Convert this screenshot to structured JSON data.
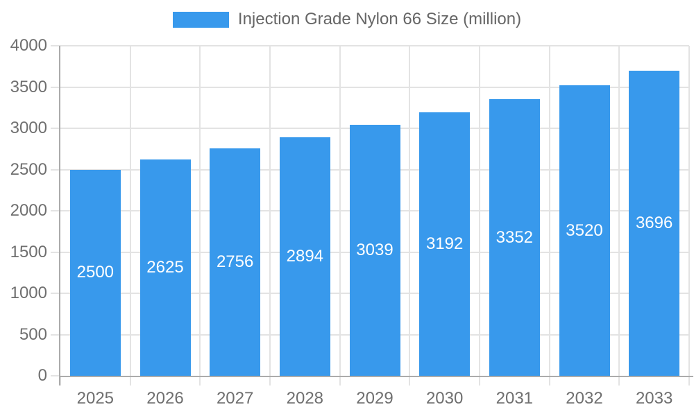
{
  "chart_data": {
    "type": "bar",
    "title": "Injection Grade Nylon 66 Size (million)",
    "legend_label": "Injection Grade Nylon 66 Size (million)",
    "legend_position": "top",
    "categories": [
      "2025",
      "2026",
      "2027",
      "2028",
      "2029",
      "2030",
      "2031",
      "2032",
      "2033"
    ],
    "values": [
      2500,
      2625,
      2756,
      2894,
      3039,
      3192,
      3352,
      3520,
      3696
    ],
    "xlabel": "",
    "ylabel": "",
    "ylim": [
      0,
      4000
    ],
    "yticks": [
      0,
      500,
      1000,
      1500,
      2000,
      2500,
      3000,
      3500,
      4000
    ],
    "grid": true,
    "value_labels": "inside-center",
    "colors": {
      "bar": "#3899EC",
      "grid": "#E3E3E3",
      "axis": "#ABABAB",
      "tick_text": "#6F6F6F",
      "legend_text": "#666666",
      "value_label": "#FFFFFF",
      "background": "#FFFFFF"
    }
  }
}
